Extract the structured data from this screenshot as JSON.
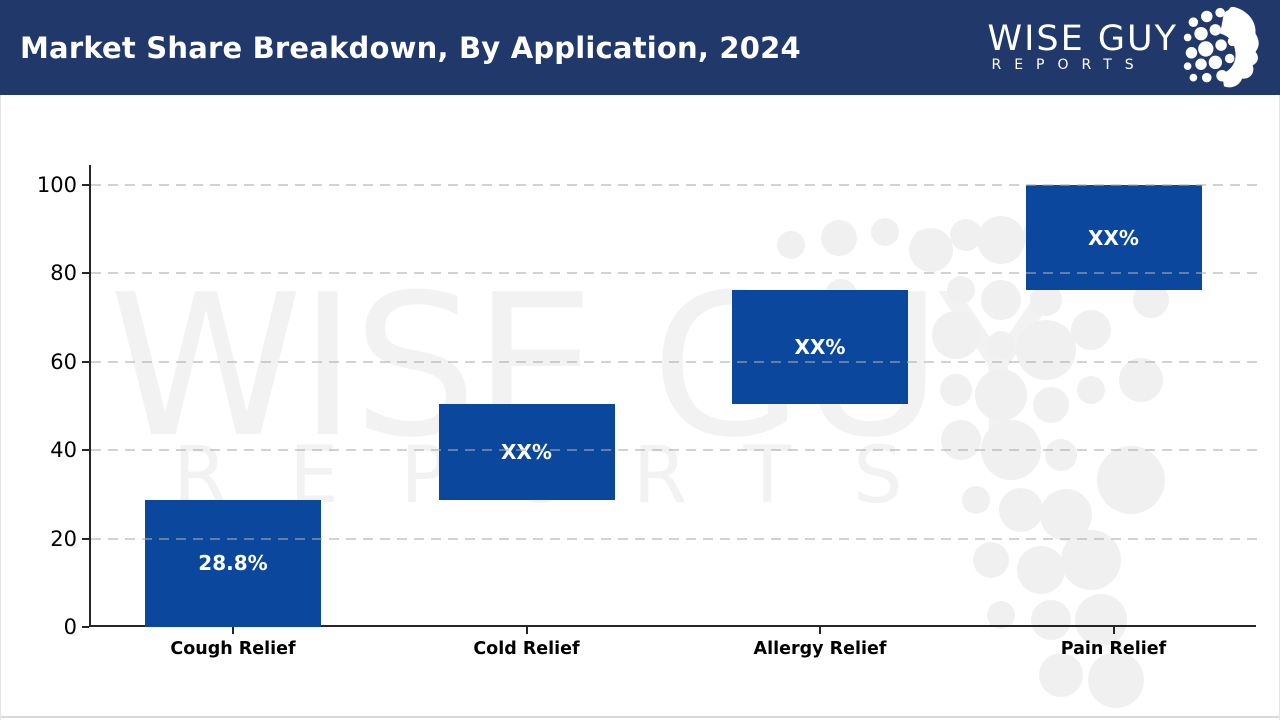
{
  "header": {
    "title": "Market Share Breakdown, By Application, 2024",
    "logo_line1": "WISE GUY",
    "logo_line2": "REPORTS"
  },
  "watermark": {
    "line1": "WISE GUY",
    "line2": "REPORTS"
  },
  "chart_data": {
    "type": "bar",
    "subtype": "waterfall",
    "title": "Market Share Breakdown, By Application, 2024",
    "categories": [
      "Cough Relief",
      "Cold Relief",
      "Allergy Relief",
      "Pain Relief"
    ],
    "segments": [
      {
        "start": 0,
        "end": 28.8,
        "label": "28.8%"
      },
      {
        "start": 28.8,
        "end": 50.5,
        "label": "XX%"
      },
      {
        "start": 50.5,
        "end": 76.2,
        "label": "XX%"
      },
      {
        "start": 76.2,
        "end": 100,
        "label": "XX%"
      }
    ],
    "yticks": [
      0,
      20,
      40,
      60,
      80,
      100
    ],
    "ylim": [
      0,
      104.5
    ],
    "xlabel": "",
    "ylabel": "",
    "grid": "horizontal-dashed",
    "legend": "none",
    "bar_color": "#0a479d",
    "value_label_color": "#ffffff"
  },
  "colors": {
    "header_bg": "#21386b",
    "bar": "#0a479d",
    "gridline": "#d9d9d9",
    "watermark": "#f2f2f2",
    "axis": "#262626"
  }
}
